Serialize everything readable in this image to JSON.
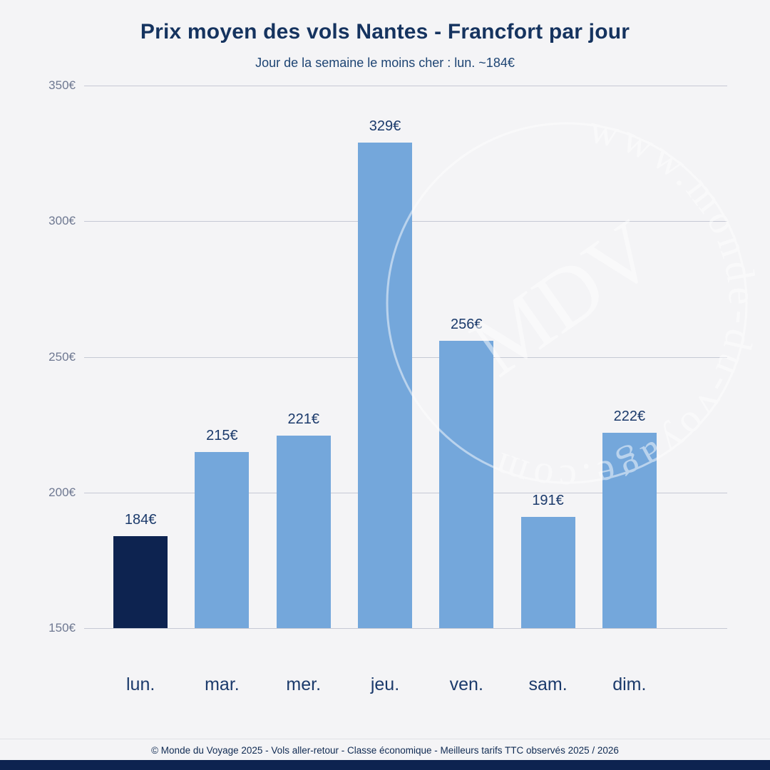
{
  "title": "Prix moyen des vols Nantes - Francfort par jour",
  "subtitle": "Jour de la semaine le moins cher : lun. ~184€",
  "watermark": {
    "url_text": "www.monde-du-voyage.com",
    "initials": "MDV"
  },
  "footer": {
    "text": "© Monde du Voyage 2025 - Vols aller-retour - Classe économique - Meilleurs tarifs TTC observés 2025 / 2026"
  },
  "colors": {
    "background": "#f4f4f6",
    "bar": "#74a7db",
    "bar_highlight": "#0d2350",
    "title": "#15335f",
    "subtitle": "#1d4473",
    "grid": "#c6c9d4",
    "tick_label": "#6e7891",
    "value_label": "#1b3a6b",
    "footer_bar": "#0d2350"
  },
  "chart_data": {
    "type": "bar",
    "title": "Prix moyen des vols Nantes - Francfort par jour",
    "subtitle": "Jour de la semaine le moins cher : lun. ~184€",
    "categories": [
      "lun.",
      "mar.",
      "mer.",
      "jeu.",
      "ven.",
      "sam.",
      "dim."
    ],
    "values": [
      184,
      215,
      221,
      329,
      256,
      191,
      222
    ],
    "value_labels": [
      "184€",
      "215€",
      "221€",
      "329€",
      "256€",
      "191€",
      "222€"
    ],
    "value_suffix": "€",
    "highlight_index": 0,
    "highlight_meaning": "cheapest day",
    "xlabel": "",
    "ylabel": "",
    "ylim": [
      150,
      350
    ],
    "yticks": [
      150,
      200,
      250,
      300,
      350
    ],
    "ytick_labels": [
      "150€",
      "200€",
      "250€",
      "300€",
      "350€"
    ],
    "grid": true,
    "legend": "none"
  }
}
